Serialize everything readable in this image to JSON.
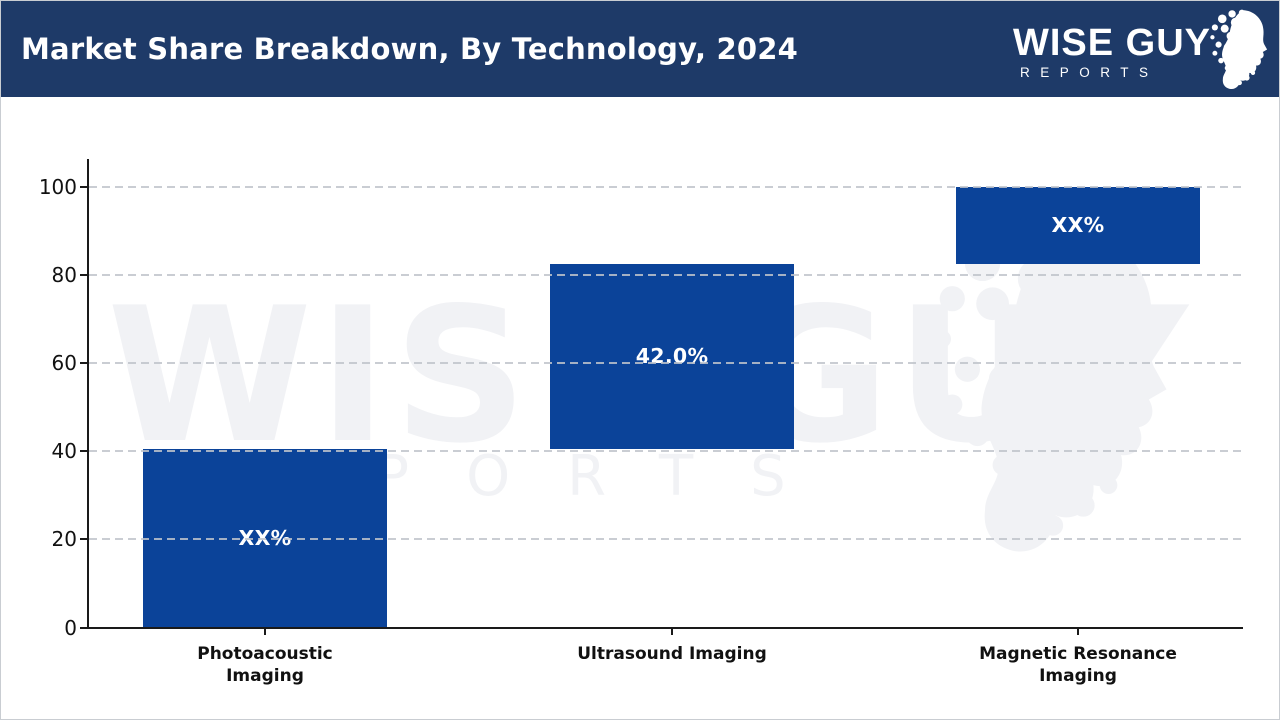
{
  "header": {
    "title": "Market Share Breakdown, By Technology, 2024",
    "bg_color": "#1e3a68",
    "logo": {
      "line1": "WISE GUY",
      "line2": "REPORTS",
      "face_icon": "dotted-head-profile"
    }
  },
  "watermark": {
    "text1": "WISE GUY",
    "text2": "REPORTS",
    "face_icon": "dotted-head-profile",
    "color": "#f1f2f5"
  },
  "chart_data": {
    "type": "bar",
    "variant": "floating-range-waterfall",
    "title": "Market Share Breakdown, By Technology, 2024",
    "categories": [
      "Photoacoustic\nImaging",
      "Ultrasound Imaging",
      "Magnetic Resonance\nImaging"
    ],
    "segments": [
      {
        "category": "Photoacoustic Imaging",
        "start": 0,
        "end": 40.5,
        "label": "XX%"
      },
      {
        "category": "Ultrasound Imaging",
        "start": 40.5,
        "end": 82.5,
        "label": "42.0%"
      },
      {
        "category": "Magnetic Resonance Imaging",
        "start": 82.5,
        "end": 100,
        "label": "XX%"
      }
    ],
    "xlabel": "",
    "ylabel": "",
    "ylim": [
      0,
      100
    ],
    "yticks": [
      0,
      20,
      40,
      60,
      80,
      100
    ],
    "grid": "horizontal-dashed",
    "grid_on_top_of_bars": true,
    "legend": "none",
    "bar_color": "#0b4399",
    "bar_label_color": "#ffffff",
    "axis_color": "#1a1a1a",
    "tick_label_color": "#111111"
  }
}
